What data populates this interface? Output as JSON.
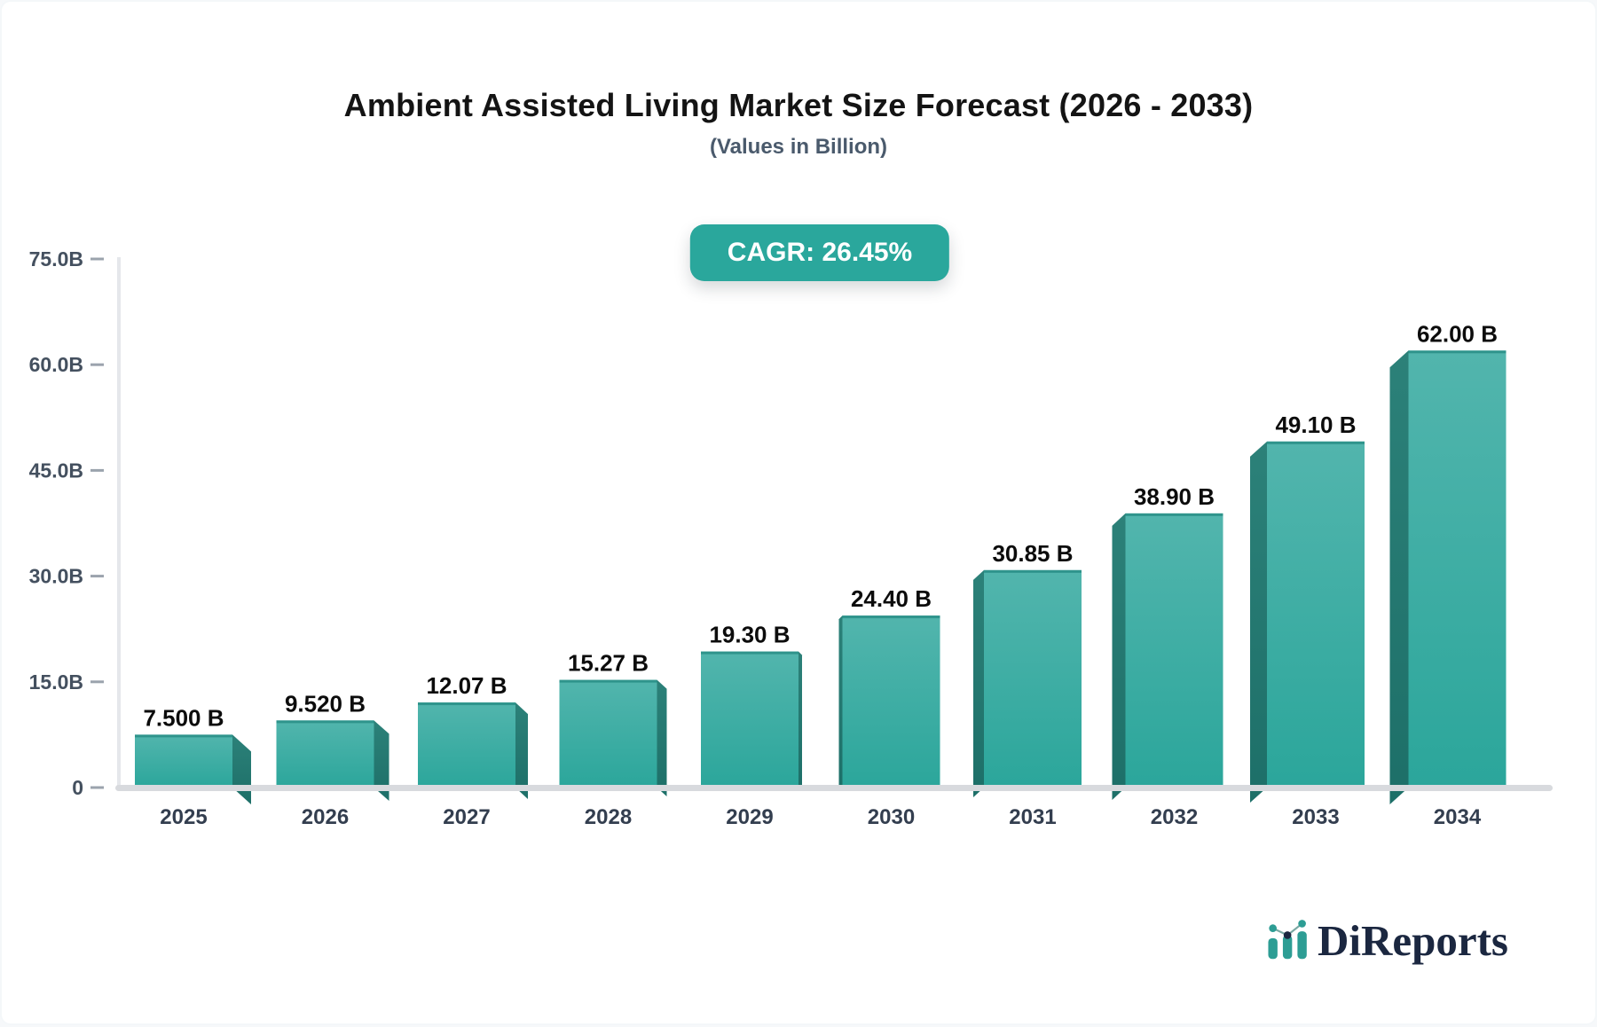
{
  "header": {
    "title": "Ambient Assisted Living Market Size Forecast (2026 - 2033)",
    "subtitle": "(Values in Billion)",
    "cagr_badge": "CAGR: 26.45%"
  },
  "branding": {
    "logo_text": "DiReports"
  },
  "colors": {
    "badge_bg": "#2aa79c",
    "bar_front_top": "#52b5ad",
    "bar_front_bottom": "#2ba69b",
    "bar_top_edge": "#2f948c",
    "bar_side_top": "#2c8179",
    "bar_side_bottom": "#1d6f68",
    "y_axis_line": "#e5e7eb",
    "x_baseline": "#d8dade",
    "tick_dash": "#9ba3ad",
    "tick_label": "#44505f",
    "year_label": "#333e4f",
    "value_label": "#0c0c0c",
    "logo_navy": "#1b2740",
    "logo_teal": "#2d9d94"
  },
  "chart_data": {
    "type": "bar",
    "title": "Ambient Assisted Living Market Size Forecast (2026 - 2033)",
    "subtitle": "(Values in Billion)",
    "cagr_percent": 26.45,
    "categories": [
      "2025",
      "2026",
      "2027",
      "2028",
      "2029",
      "2030",
      "2031",
      "2032",
      "2033",
      "2034"
    ],
    "values": [
      7.5,
      9.52,
      12.07,
      15.27,
      19.3,
      24.4,
      30.85,
      38.9,
      49.1,
      62.0
    ],
    "value_labels": [
      "7.500 B",
      "9.520 B",
      "12.07 B",
      "15.27 B",
      "19.30 B",
      "24.40 B",
      "30.85 B",
      "38.90 B",
      "49.10 B",
      "62.00 B"
    ],
    "ylim": [
      0,
      75
    ],
    "y_ticks": [
      {
        "value": 0,
        "label": "0"
      },
      {
        "value": 15,
        "label": "15.0B"
      },
      {
        "value": 30,
        "label": "30.0B"
      },
      {
        "value": 45,
        "label": "45.0B"
      },
      {
        "value": 60,
        "label": "60.0B"
      },
      {
        "value": 75,
        "label": "75.0B"
      }
    ],
    "xlabel": "",
    "ylabel": "",
    "grid": false,
    "legend": null,
    "style": "3d-perspective-teal"
  }
}
